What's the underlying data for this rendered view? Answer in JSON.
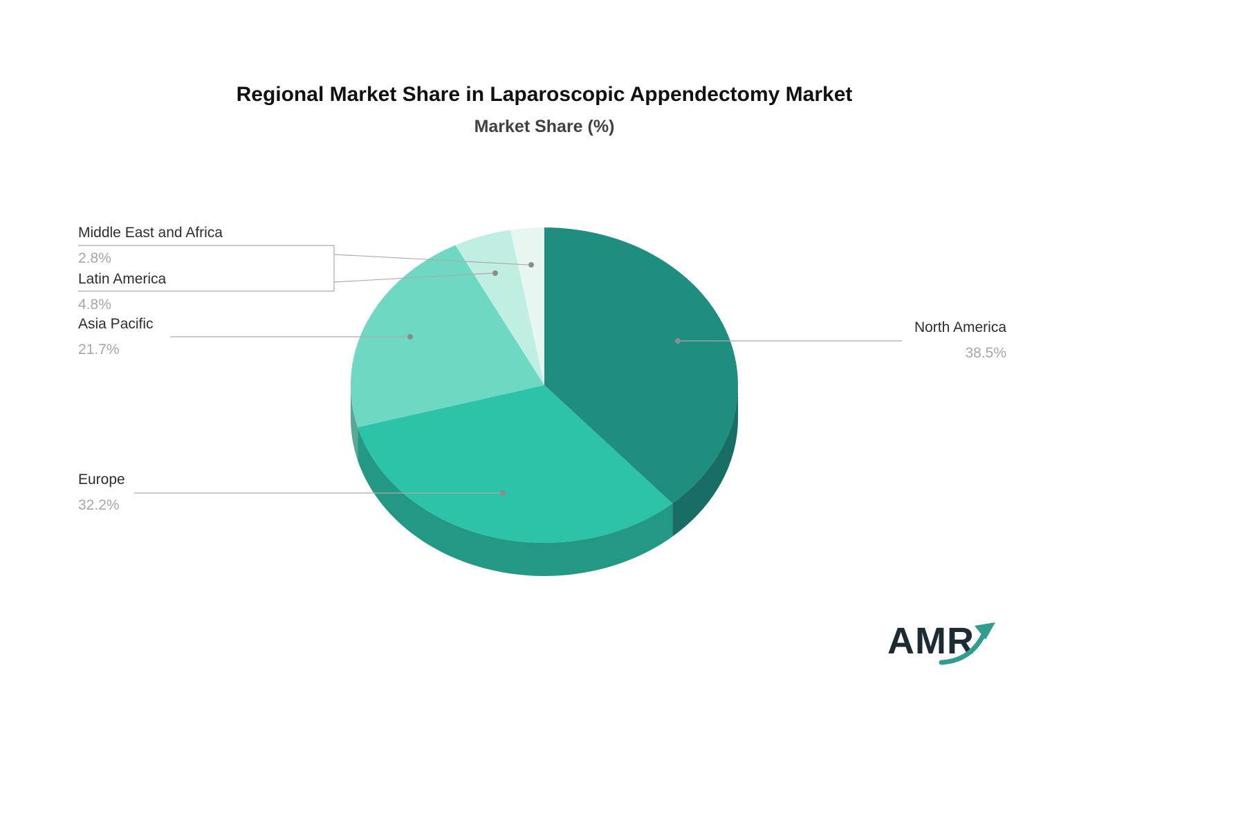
{
  "page": {
    "background": "#ffffff"
  },
  "chart_data": {
    "type": "pie",
    "title": "Regional Market Share in Laparoscopic Appendectomy Market",
    "subtitle": "Market Share (%)",
    "style": "3d-pie",
    "direction": "clockwise",
    "start_angle_deg": -90,
    "legend_position": "callout-labels",
    "points": [
      {
        "label": "North America",
        "value": 38.5,
        "value_text": "38.5%",
        "color": "#1f8d80"
      },
      {
        "label": "Europe",
        "value": 32.2,
        "value_text": "32.2%",
        "color": "#2dc3a9"
      },
      {
        "label": "Asia Pacific",
        "value": 21.7,
        "value_text": "21.7%",
        "color": "#6fd8c2"
      },
      {
        "label": "Latin America",
        "value": 4.8,
        "value_text": "4.8%",
        "color": "#c0eee3"
      },
      {
        "label": "Middle East and Africa",
        "value": 2.8,
        "value_text": "2.8%",
        "color": "#e8f6f1"
      }
    ]
  },
  "logo": {
    "text": "AMR",
    "accent_color": "#2f9e8f"
  }
}
